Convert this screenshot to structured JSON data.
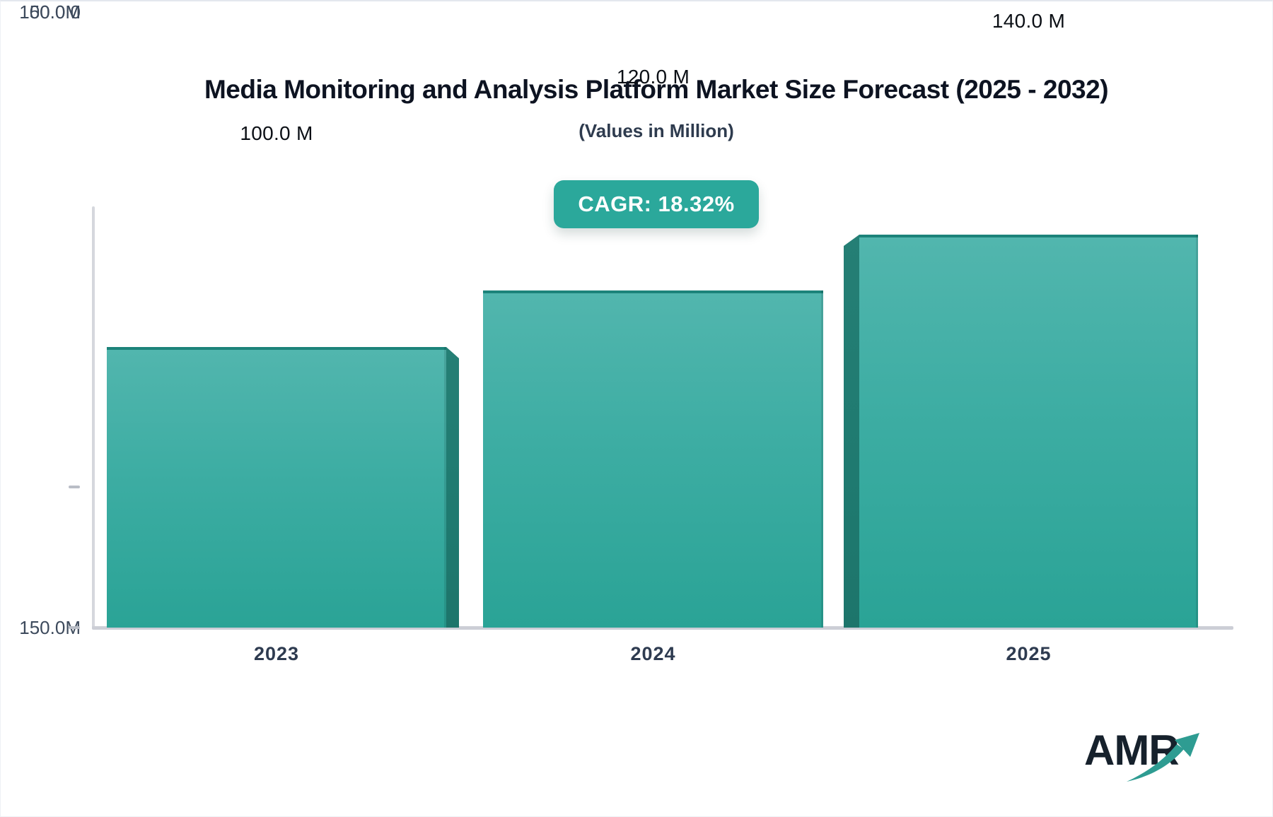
{
  "title": "Media Monitoring and Analysis Platform Market Size Forecast (2025 - 2032)",
  "subtitle": "(Values in Million)",
  "badge": {
    "label": "CAGR: 18.32%"
  },
  "logo": {
    "text": "AMR",
    "icon": "growth-arrow-icon"
  },
  "colors": {
    "accent_teal": "#2ba89b",
    "bar_gradient_top": "#52b6ae",
    "bar_gradient_bottom": "#2aa396",
    "bar_top_edge": "#1c837a",
    "bar_bevel": "#1f7a70",
    "axis_line": "#ccced6",
    "tick_label": "#3d4a5c",
    "x_label": "#2e3b50",
    "title_text": "#0d1321",
    "badge_text": "#ffffff",
    "logo_navy": "#16212c",
    "logo_arrow_teal": "#2e9c92"
  },
  "chart_data": {
    "type": "bar",
    "title": "Media Monitoring and Analysis Platform Market Size Forecast (2025 - 2032)",
    "subtitle": "(Values in Million)",
    "cagr_percent": 18.32,
    "categories": [
      "2023",
      "2024",
      "2025"
    ],
    "values": [
      100,
      120,
      140
    ],
    "data_labels": [
      "100.0 M",
      "120.0 M",
      "140.0 M"
    ],
    "xlabel": "",
    "ylabel": "",
    "ylim": [
      0,
      150
    ],
    "y_ticks": [
      {
        "label": "150.0M",
        "value": 150
      },
      {
        "label": "100.0M",
        "value": 100
      },
      {
        "label": "50.0M",
        "value": 50
      },
      {
        "label": "0",
        "value": 0
      }
    ],
    "grid": false,
    "legend": false,
    "bar_color": "#2aa396",
    "style": "3d-perspective"
  }
}
